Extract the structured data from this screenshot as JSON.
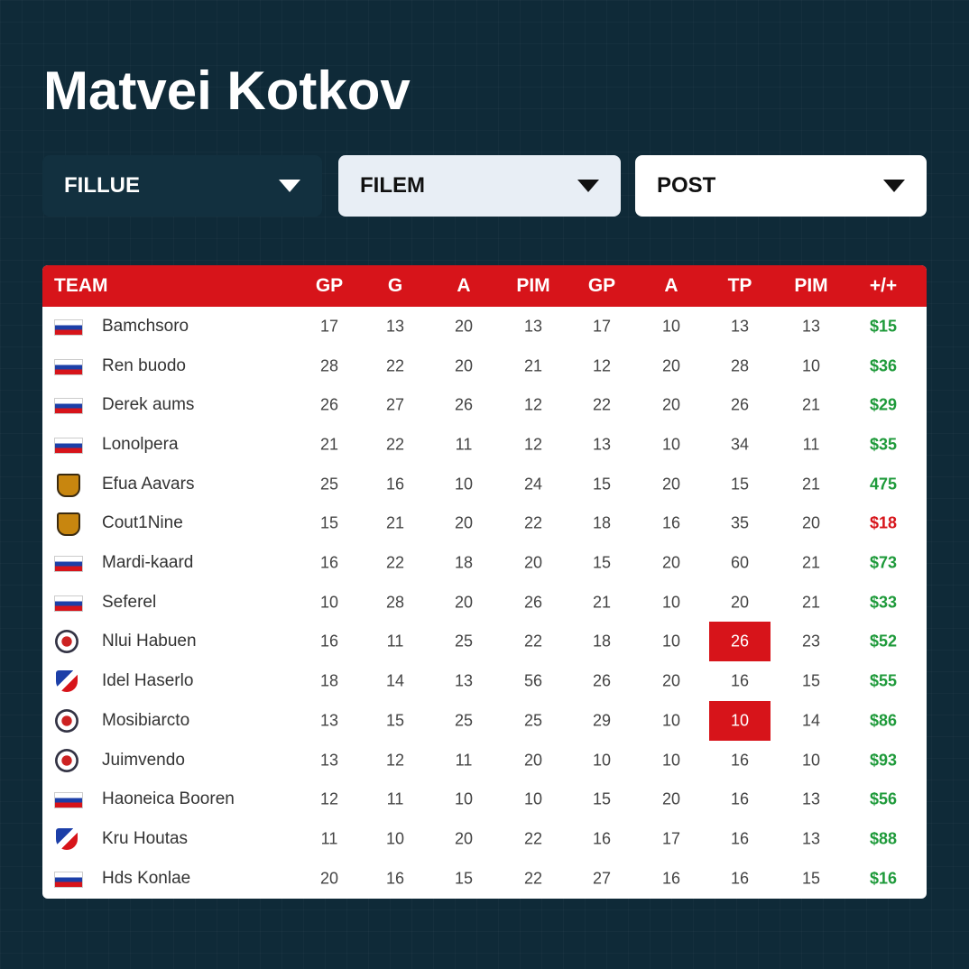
{
  "header": {
    "title": "Matvei Kotkov"
  },
  "filters": [
    {
      "label": "FILLUE",
      "style": "dark"
    },
    {
      "label": "FILEM",
      "style": "light"
    },
    {
      "label": "POST",
      "style": "white"
    }
  ],
  "table": {
    "columns": [
      "TEAM",
      "GP",
      "G",
      "A",
      "PIM",
      "GP",
      "A",
      "TP",
      "PIM",
      "+/+"
    ],
    "rows": [
      {
        "badge": "flag",
        "delta": "up",
        "cells": [
          "Bamchsoro",
          "17",
          "13",
          "20",
          "13",
          "17",
          "10",
          "13",
          "13",
          "$15"
        ]
      },
      {
        "badge": "flag",
        "delta": "up",
        "cells": [
          "Ren buodo",
          "28",
          "22",
          "20",
          "21",
          "12",
          "20",
          "28",
          "10",
          "$36"
        ]
      },
      {
        "badge": "flag",
        "delta": "up",
        "cells": [
          "Derek aums",
          "26",
          "27",
          "26",
          "12",
          "22",
          "20",
          "26",
          "21",
          "$29"
        ]
      },
      {
        "badge": "flag",
        "delta": "up",
        "cells": [
          "Lonolpera",
          "21",
          "22",
          "11",
          "12",
          "13",
          "10",
          "34",
          "11",
          "$35"
        ]
      },
      {
        "badge": "crest",
        "delta": "up",
        "cells": [
          "Efua Aavars",
          "25",
          "16",
          "10",
          "24",
          "15",
          "20",
          "15",
          "21",
          "475"
        ]
      },
      {
        "badge": "crest",
        "delta": "down",
        "cells": [
          "Cout1Nine",
          "15",
          "21",
          "20",
          "22",
          "18",
          "16",
          "35",
          "20",
          "$18"
        ]
      },
      {
        "badge": "flag",
        "delta": "up",
        "cells": [
          "Mardi-kaard",
          "16",
          "22",
          "18",
          "20",
          "15",
          "20",
          "60",
          "21",
          "$73"
        ]
      },
      {
        "badge": "flag",
        "delta": "up",
        "cells": [
          "Seferel",
          "10",
          "28",
          "20",
          "26",
          "21",
          "10",
          "20",
          "21",
          "$33"
        ]
      },
      {
        "badge": "round",
        "delta": "up",
        "highlight": 7,
        "cells": [
          "Nlui Habuen",
          "16",
          "11",
          "25",
          "22",
          "18",
          "10",
          "26",
          "23",
          "$52"
        ]
      },
      {
        "badge": "shield",
        "delta": "up",
        "cells": [
          "Idel Haserlo",
          "18",
          "14",
          "13",
          "56",
          "26",
          "20",
          "16",
          "15",
          "$55"
        ]
      },
      {
        "badge": "round",
        "delta": "up",
        "highlight": 7,
        "cells": [
          "Mosibiarcto",
          "13",
          "15",
          "25",
          "25",
          "29",
          "10",
          "10",
          "14",
          "$86"
        ]
      },
      {
        "badge": "round",
        "delta": "up",
        "cells": [
          "Juimvendo",
          "13",
          "12",
          "11",
          "20",
          "10",
          "10",
          "16",
          "10",
          "$93"
        ]
      },
      {
        "badge": "flag",
        "delta": "up",
        "cells": [
          "Haoneica Booren",
          "12",
          "11",
          "10",
          "10",
          "15",
          "20",
          "16",
          "13",
          "$56"
        ]
      },
      {
        "badge": "shield",
        "delta": "up",
        "cells": [
          "Kru Houtas",
          "11",
          "10",
          "20",
          "22",
          "16",
          "17",
          "16",
          "13",
          "$88"
        ]
      },
      {
        "badge": "flag",
        "delta": "up",
        "cells": [
          "Hds Konlae",
          "20",
          "16",
          "15",
          "22",
          "27",
          "16",
          "16",
          "15",
          "$16"
        ]
      }
    ]
  }
}
